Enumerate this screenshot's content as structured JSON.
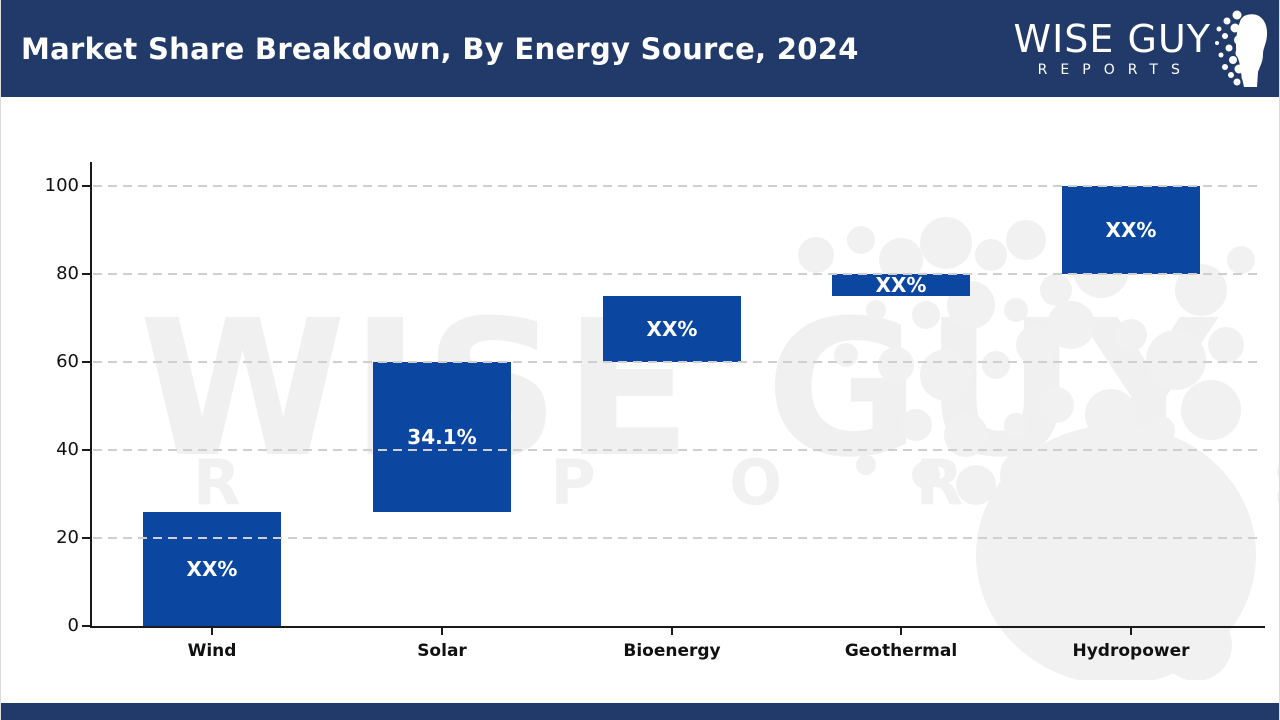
{
  "header": {
    "title": "Market Share Breakdown, By Energy Source, 2024",
    "logo": {
      "name": "WISE GUY",
      "sub": "REPORTS"
    }
  },
  "watermark": {
    "line1": "WISE GUY",
    "line2": "R E P O R T S"
  },
  "footer": {},
  "chart_data": {
    "type": "bar",
    "subtype": "waterfall",
    "title": "Market Share Breakdown, By Energy Source, 2024",
    "categories": [
      "Wind",
      "Solar",
      "Bioenergy",
      "Geothermal",
      "Hydropower"
    ],
    "segments": [
      {
        "category": "Wind",
        "start": 0,
        "end": 26.0,
        "height": 26.0,
        "label": "XX%"
      },
      {
        "category": "Solar",
        "start": 26.0,
        "end": 60.1,
        "height": 34.1,
        "label": "34.1%"
      },
      {
        "category": "Bioenergy",
        "start": 60.1,
        "end": 75.1,
        "height": 15.0,
        "label": "XX%"
      },
      {
        "category": "Geothermal",
        "start": 75.1,
        "end": 80.1,
        "height": 5.0,
        "label": "XX%"
      },
      {
        "category": "Hydropower",
        "start": 80.1,
        "end": 100,
        "height": 19.9,
        "label": "XX%"
      }
    ],
    "xlabel": "",
    "ylabel": "",
    "ylim": [
      0,
      100
    ],
    "yticks": [
      0,
      20,
      40,
      60,
      80,
      100
    ],
    "grid": "horizontal-dashed",
    "legend": "none",
    "bar_color": "#0b46a0"
  },
  "colors": {
    "header_bg": "#213a69",
    "footer_bg": "#213a69",
    "bar": "#0b46a0",
    "grid": "#cfcfcf",
    "axis": "#1a1a1a",
    "watermark": "#f0f0f0",
    "title_text": "#ffffff"
  }
}
